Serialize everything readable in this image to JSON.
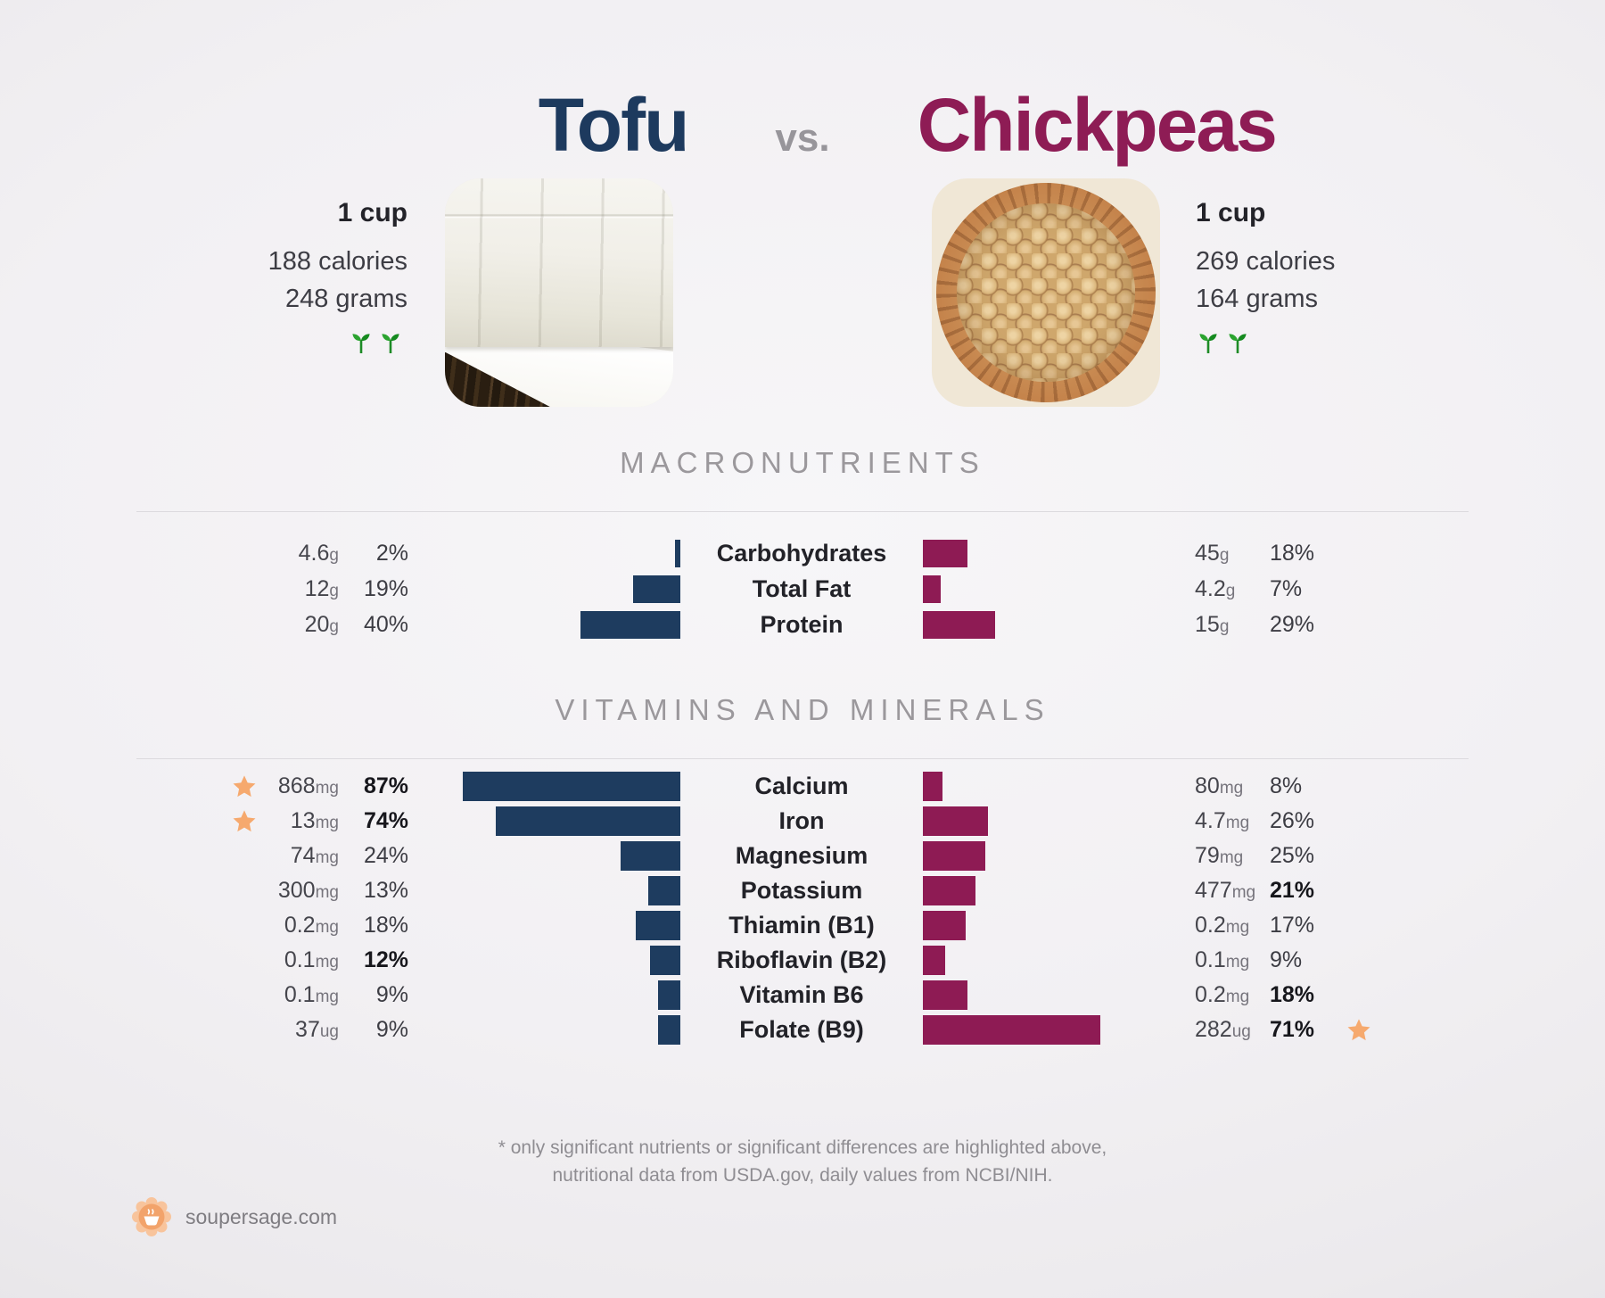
{
  "title": {
    "food_a": "Tofu",
    "separator": "vs.",
    "food_b": "Chickpeas"
  },
  "hero": {
    "tofu": {
      "serving": "1 cup",
      "calories": "188 calories",
      "weight": "248 grams"
    },
    "chickpeas": {
      "serving": "1 cup",
      "calories": "269 calories",
      "weight": "164 grams"
    }
  },
  "icons": {
    "vegan": "sprout-icon",
    "highlight": "star-icon",
    "logo": "soup-bowl-flower-icon"
  },
  "colors": {
    "tofu_accent": "#1d3a5e",
    "chickpeas_accent": "#8e1c55",
    "tofu_bar": "#1e3c5f",
    "chickpeas_bar": "#8e1b54",
    "star": "#f6a96e",
    "heading_gray": "#9b989c"
  },
  "sections": [
    {
      "id": "macros",
      "heading": "MACRONUTRIENTS",
      "rows": [
        {
          "label": "Carbohydrates",
          "left": {
            "value": "4.6",
            "unit": "g",
            "pct": 2,
            "bold": false,
            "star": false
          },
          "right": {
            "value": "45",
            "unit": "g",
            "pct": 18,
            "bold": false,
            "star": false
          }
        },
        {
          "label": "Total Fat",
          "left": {
            "value": "12",
            "unit": "g",
            "pct": 19,
            "bold": false,
            "star": false
          },
          "right": {
            "value": "4.2",
            "unit": "g",
            "pct": 7,
            "bold": false,
            "star": false
          }
        },
        {
          "label": "Protein",
          "left": {
            "value": "20",
            "unit": "g",
            "pct": 40,
            "bold": false,
            "star": false
          },
          "right": {
            "value": "15",
            "unit": "g",
            "pct": 29,
            "bold": false,
            "star": false
          }
        }
      ]
    },
    {
      "id": "vitamins",
      "heading": "VITAMINS AND MINERALS",
      "rows": [
        {
          "label": "Calcium",
          "left": {
            "value": "868",
            "unit": "mg",
            "pct": 87,
            "bold": true,
            "star": true
          },
          "right": {
            "value": "80",
            "unit": "mg",
            "pct": 8,
            "bold": false,
            "star": false
          }
        },
        {
          "label": "Iron",
          "left": {
            "value": "13",
            "unit": "mg",
            "pct": 74,
            "bold": true,
            "star": true
          },
          "right": {
            "value": "4.7",
            "unit": "mg",
            "pct": 26,
            "bold": false,
            "star": false
          }
        },
        {
          "label": "Magnesium",
          "left": {
            "value": "74",
            "unit": "mg",
            "pct": 24,
            "bold": false,
            "star": false
          },
          "right": {
            "value": "79",
            "unit": "mg",
            "pct": 25,
            "bold": false,
            "star": false
          }
        },
        {
          "label": "Potassium",
          "left": {
            "value": "300",
            "unit": "mg",
            "pct": 13,
            "bold": false,
            "star": false
          },
          "right": {
            "value": "477",
            "unit": "mg",
            "pct": 21,
            "bold": true,
            "star": false
          }
        },
        {
          "label": "Thiamin (B1)",
          "left": {
            "value": "0.2",
            "unit": "mg",
            "pct": 18,
            "bold": false,
            "star": false
          },
          "right": {
            "value": "0.2",
            "unit": "mg",
            "pct": 17,
            "bold": false,
            "star": false
          }
        },
        {
          "label": "Riboflavin (B2)",
          "left": {
            "value": "0.1",
            "unit": "mg",
            "pct": 12,
            "bold": true,
            "star": false
          },
          "right": {
            "value": "0.1",
            "unit": "mg",
            "pct": 9,
            "bold": false,
            "star": false
          }
        },
        {
          "label": "Vitamin B6",
          "left": {
            "value": "0.1",
            "unit": "mg",
            "pct": 9,
            "bold": false,
            "star": false
          },
          "right": {
            "value": "0.2",
            "unit": "mg",
            "pct": 18,
            "bold": true,
            "star": false
          }
        },
        {
          "label": "Folate (B9)",
          "left": {
            "value": "37",
            "unit": "ug",
            "pct": 9,
            "bold": false,
            "star": false
          },
          "right": {
            "value": "282",
            "unit": "ug",
            "pct": 71,
            "bold": true,
            "star": true
          }
        }
      ]
    }
  ],
  "footer": {
    "line1": "* only significant nutrients or significant differences are highlighted above,",
    "line2": "nutritional data from USDA.gov, daily values from NCBI/NIH.",
    "site": "soupersage.com"
  },
  "chart_data": [
    {
      "type": "bar",
      "title": "MACRONUTRIENTS",
      "orientation": "horizontal-mirrored",
      "categories": [
        "Carbohydrates",
        "Total Fat",
        "Protein"
      ],
      "series": [
        {
          "name": "Tofu (% daily value)",
          "values": [
            2,
            19,
            40
          ]
        },
        {
          "name": "Chickpeas (% daily value)",
          "values": [
            18,
            7,
            29
          ]
        }
      ],
      "amounts": {
        "Tofu": [
          "4.6g",
          "12g",
          "20g"
        ],
        "Chickpeas": [
          "45g",
          "4.2g",
          "15g"
        ]
      },
      "xlabel": "",
      "ylabel": "% daily value",
      "xlim": [
        0,
        100
      ],
      "grid": false,
      "legend_position": "none",
      "category_labels_position": "center"
    },
    {
      "type": "bar",
      "title": "VITAMINS AND MINERALS",
      "orientation": "horizontal-mirrored",
      "categories": [
        "Calcium",
        "Iron",
        "Magnesium",
        "Potassium",
        "Thiamin (B1)",
        "Riboflavin (B2)",
        "Vitamin B6",
        "Folate (B9)"
      ],
      "series": [
        {
          "name": "Tofu (% daily value)",
          "values": [
            87,
            74,
            24,
            13,
            18,
            12,
            9,
            9
          ]
        },
        {
          "name": "Chickpeas (% daily value)",
          "values": [
            8,
            26,
            25,
            21,
            17,
            9,
            18,
            71
          ]
        }
      ],
      "amounts": {
        "Tofu": [
          "868mg",
          "13mg",
          "74mg",
          "300mg",
          "0.2mg",
          "0.1mg",
          "0.1mg",
          "37ug"
        ],
        "Chickpeas": [
          "80mg",
          "4.7mg",
          "79mg",
          "477mg",
          "0.2mg",
          "0.1mg",
          "0.2mg",
          "282ug"
        ]
      },
      "highlighted_bold": {
        "Tofu": [
          "Calcium",
          "Iron",
          "Riboflavin (B2)"
        ],
        "Chickpeas": [
          "Potassium",
          "Vitamin B6",
          "Folate (B9)"
        ]
      },
      "starred": {
        "Tofu": [
          "Calcium",
          "Iron"
        ],
        "Chickpeas": [
          "Folate (B9)"
        ]
      },
      "xlabel": "",
      "ylabel": "% daily value",
      "xlim": [
        0,
        100
      ],
      "grid": false,
      "legend_position": "none",
      "category_labels_position": "center"
    }
  ]
}
